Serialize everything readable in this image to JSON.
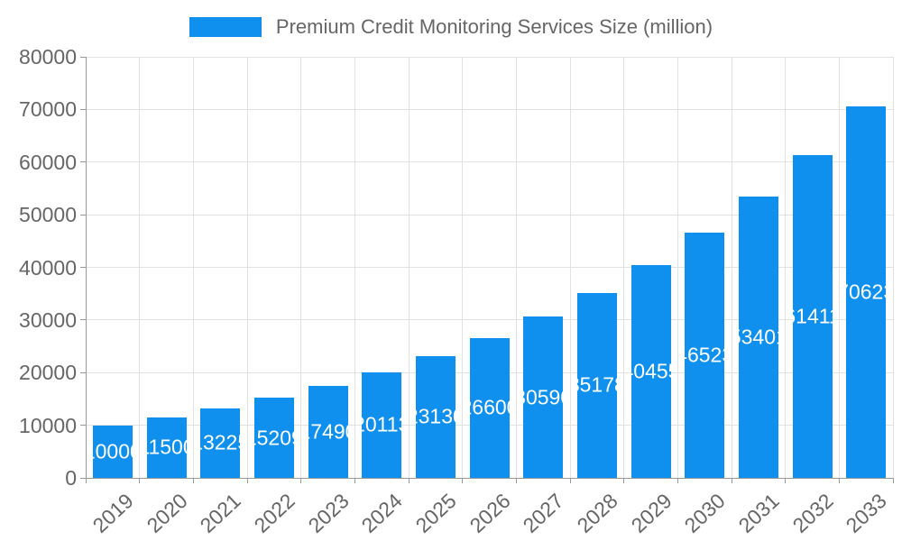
{
  "legend": {
    "title": "Premium Credit Monitoring Services Size (million)"
  },
  "chart_data": {
    "type": "bar",
    "title": "Premium Credit Monitoring Services Size (million)",
    "series_name": "Premium Credit Monitoring Services Size (million)",
    "categories": [
      "2019",
      "2020",
      "2021",
      "2022",
      "2023",
      "2024",
      "2025",
      "2026",
      "2027",
      "2028",
      "2029",
      "2030",
      "2031",
      "2032",
      "2033"
    ],
    "values": [
      10000,
      11500,
      13225,
      15209,
      17490,
      20113,
      23130,
      26600,
      30590,
      35178,
      40455,
      46523,
      53401,
      61411,
      70623
    ],
    "xlabel": "",
    "ylabel": "",
    "ylim": [
      0,
      80000
    ],
    "yticks": [
      0,
      10000,
      20000,
      30000,
      40000,
      50000,
      60000,
      70000,
      80000
    ],
    "grid": true,
    "legend_position": "top",
    "bar_color": "#0f90ee",
    "bar_label_color": "#ffffff",
    "axis_text_color": "#666666",
    "axis_line_color": "#999999",
    "grid_color": "#e2e2e2",
    "background_color": "#ffffff"
  }
}
